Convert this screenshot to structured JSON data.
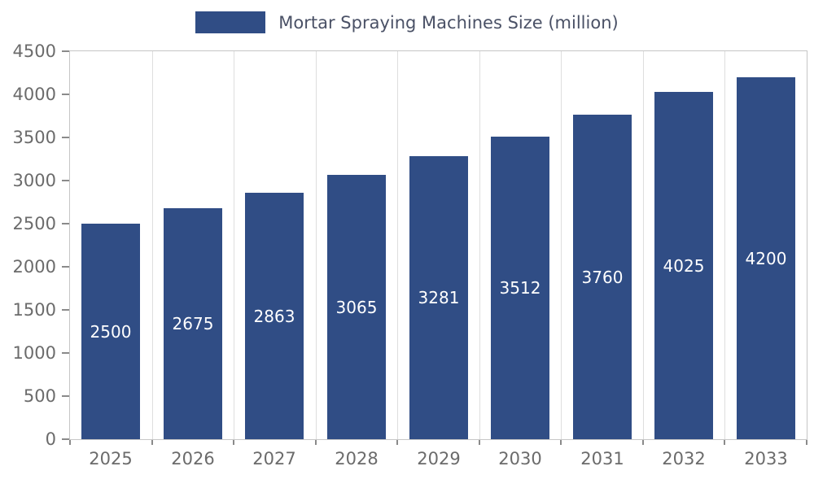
{
  "legend": {
    "label": "Mortar Spraying Machines Size (million)"
  },
  "colors": {
    "bar": "#304d85",
    "bar_label": "#ffffff",
    "grid": "#dedede",
    "axis_border": "#c6c6c6",
    "tick_text": "#6b6b6b",
    "legend_text": "#4a5166",
    "background": "#ffffff"
  },
  "chart_data": {
    "type": "bar",
    "title": "Mortar Spraying Machines Size (million)",
    "categories": [
      "2025",
      "2026",
      "2027",
      "2028",
      "2029",
      "2030",
      "2031",
      "2032",
      "2033"
    ],
    "values": [
      2500,
      2675,
      2863,
      3065,
      3281,
      3512,
      3760,
      4025,
      4200
    ],
    "xlabel": "",
    "ylabel": "",
    "ylim": [
      0,
      4500
    ],
    "ytick_step": 500,
    "yticks": [
      0,
      500,
      1000,
      1500,
      2000,
      2500,
      3000,
      3500,
      4000,
      4500
    ],
    "grid": "vertical",
    "legend_position": "top",
    "bar_value_labels": "inside-center"
  }
}
